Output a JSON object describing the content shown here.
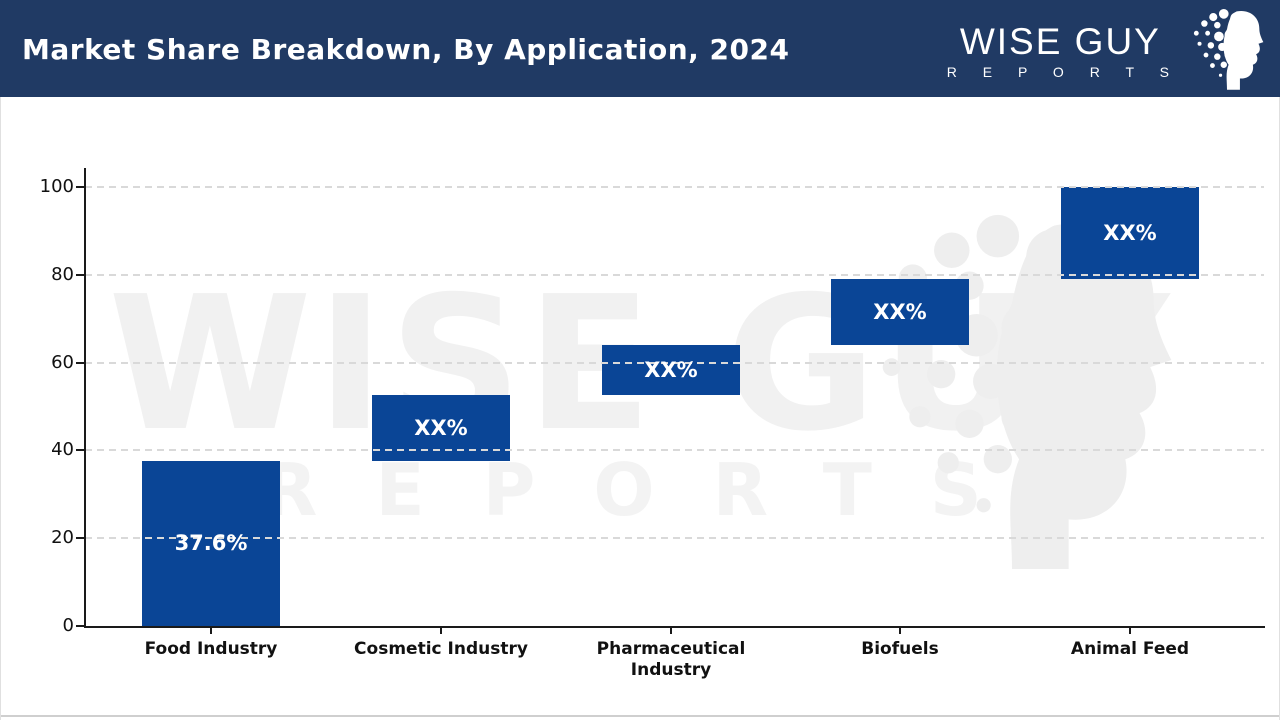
{
  "header": {
    "title": "Market Share Breakdown, By Application, 2024",
    "logo": {
      "line1": "WISE GUY",
      "line2": "R E P O R T S"
    }
  },
  "watermark": {
    "line1": "WISE GUY",
    "line2": "REPORTS"
  },
  "chart_data": {
    "type": "bar",
    "subtype": "waterfall",
    "title": "Market Share Breakdown, By Application, 2024",
    "categories": [
      "Food Industry",
      "Cosmetic Industry",
      "Pharmaceutical Industry",
      "Biofuels",
      "Animal Feed"
    ],
    "segments": [
      {
        "label": "Food Industry",
        "start": 0,
        "end": 37.6,
        "display": "37.6%"
      },
      {
        "label": "Cosmetic Industry",
        "start": 37.6,
        "end": 52.6,
        "display": "XX%"
      },
      {
        "label": "Pharmaceutical Industry",
        "start": 52.6,
        "end": 64.0,
        "display": "XX%"
      },
      {
        "label": "Biofuels",
        "start": 64.0,
        "end": 79.0,
        "display": "XX%"
      },
      {
        "label": "Animal Feed",
        "start": 79.0,
        "end": 100.0,
        "display": "XX%"
      }
    ],
    "ylim": [
      0,
      100
    ],
    "yticks": [
      0,
      20,
      40,
      60,
      80,
      100
    ],
    "ytick_labels": [
      "0",
      "20",
      "40",
      "60",
      "80",
      "100"
    ],
    "grid": "horizontal-dashed-above-bars",
    "legend": "none",
    "bar_color": "#0a4596",
    "bar_label_color": "#ffffff",
    "grid_color": "#d9d9d9",
    "axis_color": "#1a1a1a",
    "header_color": "#203a64"
  }
}
